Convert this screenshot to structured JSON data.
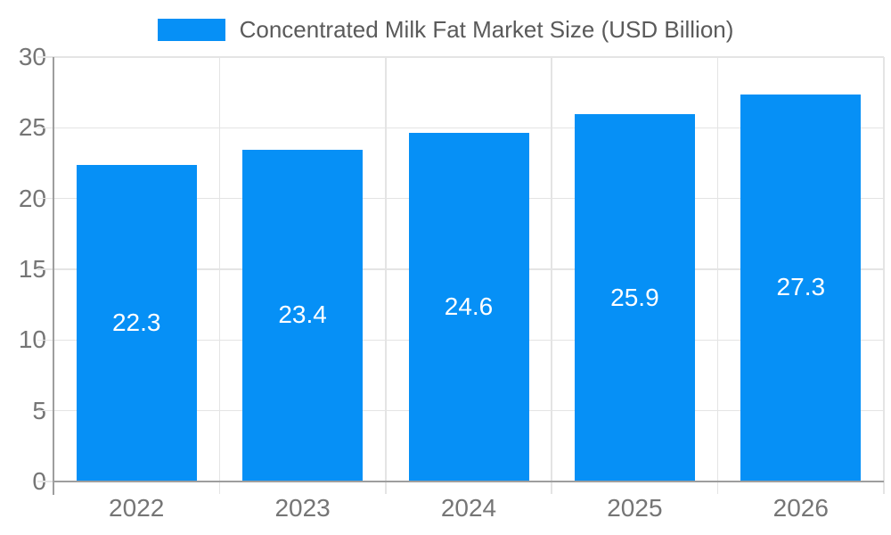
{
  "legend": {
    "label": "Concentrated Milk Fat Market Size (USD Billion)"
  },
  "chart_data": {
    "type": "bar",
    "title": "Concentrated Milk Fat Market Size (USD Billion)",
    "categories": [
      "2022",
      "2023",
      "2024",
      "2025",
      "2026"
    ],
    "values": [
      22.3,
      23.4,
      24.6,
      25.9,
      27.3
    ],
    "value_labels": [
      "22.3",
      "23.4",
      "24.6",
      "25.9",
      "27.3"
    ],
    "xlabel": "",
    "ylabel": "",
    "ylim": [
      0,
      30
    ],
    "yticks": [
      0,
      5,
      10,
      15,
      20,
      25,
      30
    ],
    "grid": "on",
    "legend_position": "top-center",
    "colors": {
      "bar": "#0690F6",
      "grid_line": "#e4e4e4",
      "axis_line": "#9e9e9e",
      "axis_tick_label": "#757575",
      "legend_text": "#5a5a5a",
      "value_label": "#ffffff",
      "background": "#ffffff"
    }
  }
}
